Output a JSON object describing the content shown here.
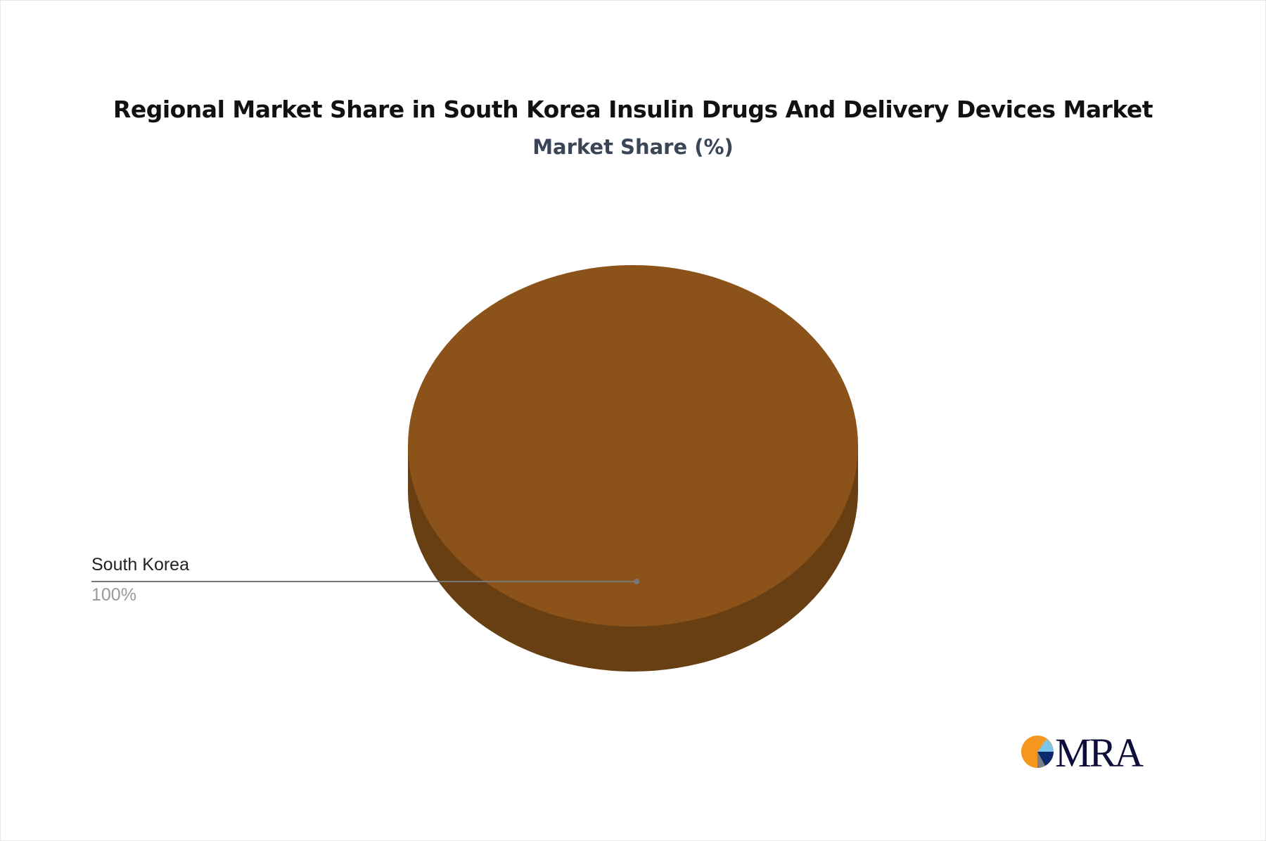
{
  "chart_data": {
    "type": "pie",
    "title": "Regional Market Share in South Korea Insulin Drugs And Delivery Devices Market",
    "subtitle": "Market Share (%)",
    "slices": [
      {
        "label": "South Korea",
        "value": 100,
        "value_label": "100%",
        "color": "#8B5319",
        "side_color": "#683F13"
      }
    ],
    "legend": "none"
  },
  "logo": {
    "text": "MRA",
    "colors": [
      "#F5961E",
      "#7FC4EA",
      "#0B2A6B",
      "#7A7F8A",
      "#0E0E3A"
    ]
  }
}
